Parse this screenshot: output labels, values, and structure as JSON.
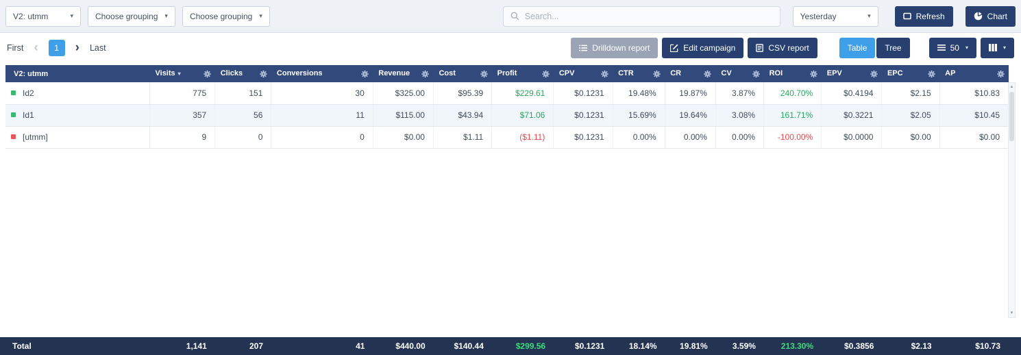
{
  "toolbar": {
    "campaign_select": "V2: utmm",
    "grouping_select_1": "Choose grouping",
    "grouping_select_2": "Choose grouping",
    "search_placeholder": "Search...",
    "date_range": "Yesterday",
    "refresh": "Refresh",
    "chart": "Chart"
  },
  "pagination": {
    "first": "First",
    "current_page": "1",
    "last": "Last"
  },
  "actions": {
    "drilldown": "Drilldown report",
    "edit_campaign": "Edit campaign",
    "csv_report": "CSV report",
    "table_view": "Table",
    "tree_view": "Tree",
    "page_size": "50"
  },
  "table": {
    "first_column_header": "V2: utmm",
    "sorted_by": "Visits",
    "columns": [
      "Visits",
      "Clicks",
      "Conversions",
      "Revenue",
      "Cost",
      "Profit",
      "CPV",
      "CTR",
      "CR",
      "CV",
      "ROI",
      "EPV",
      "EPC",
      "AP"
    ],
    "rows": [
      {
        "name": "Id2",
        "indicator": "green",
        "values": [
          "775",
          "151",
          "30",
          "$325.00",
          "$95.39",
          "$229.61",
          "$0.1231",
          "19.48%",
          "19.87%",
          "3.87%",
          "240.70%",
          "$0.4194",
          "$2.15",
          "$10.83"
        ],
        "cell_classes": [
          "",
          "",
          "",
          "",
          "",
          "pos",
          "",
          "",
          "",
          "",
          "pos",
          "",
          "",
          ""
        ]
      },
      {
        "name": "Id1",
        "indicator": "green",
        "values": [
          "357",
          "56",
          "11",
          "$115.00",
          "$43.94",
          "$71.06",
          "$0.1231",
          "15.69%",
          "19.64%",
          "3.08%",
          "161.71%",
          "$0.3221",
          "$2.05",
          "$10.45"
        ],
        "cell_classes": [
          "",
          "",
          "",
          "",
          "",
          "pos",
          "",
          "",
          "",
          "",
          "pos",
          "",
          "",
          ""
        ]
      },
      {
        "name": "[utmm]",
        "indicator": "red",
        "values": [
          "9",
          "0",
          "0",
          "$0.00",
          "$1.11",
          "($1.11)",
          "$0.1231",
          "0.00%",
          "0.00%",
          "0.00%",
          "-100.00%",
          "$0.0000",
          "$0.00",
          "$0.00"
        ],
        "cell_classes": [
          "",
          "",
          "",
          "",
          "",
          "neg",
          "",
          "",
          "",
          "",
          "neg",
          "",
          "",
          ""
        ]
      }
    ],
    "total": {
      "label": "Total",
      "values": [
        "1,141",
        "207",
        "41",
        "$440.00",
        "$140.44",
        "$299.56",
        "$0.1231",
        "18.14%",
        "19.81%",
        "3.59%",
        "213.30%",
        "$0.3856",
        "$2.13",
        "$10.73"
      ],
      "cell_classes": [
        "",
        "",
        "",
        "",
        "",
        "pos",
        "",
        "",
        "",
        "",
        "pos",
        "",
        "",
        ""
      ]
    }
  },
  "colors": {
    "navy": "#27406f",
    "accent_blue": "#3f9fe8",
    "positive": "#27a85c",
    "negative": "#e8474b",
    "header_bg": "#32497b",
    "total_bg": "#243351"
  }
}
